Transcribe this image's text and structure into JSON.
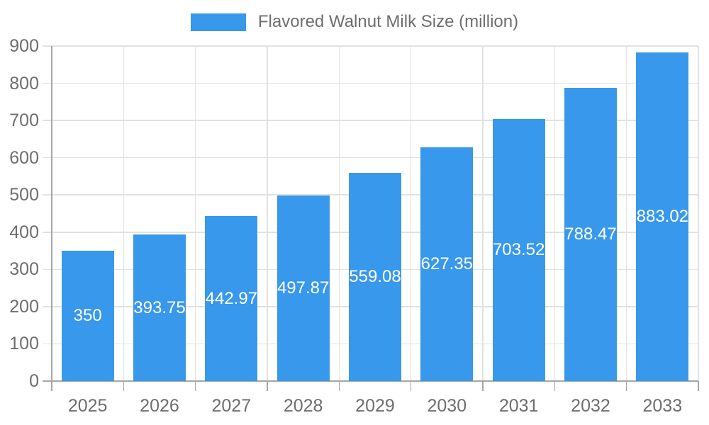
{
  "chart_data": {
    "type": "bar",
    "title": "Flavored Walnut Milk Size (million)",
    "categories": [
      "2025",
      "2026",
      "2027",
      "2028",
      "2029",
      "2030",
      "2031",
      "2032",
      "2033"
    ],
    "values": [
      350,
      393.75,
      442.97,
      497.87,
      559.08,
      627.35,
      703.52,
      788.47,
      883.02
    ],
    "value_labels": [
      "350",
      "393.75",
      "442.97",
      "497.87",
      "559.08",
      "627.35",
      "703.52",
      "788.47",
      "883.02"
    ],
    "xlabel": "",
    "ylabel": "",
    "ylim": [
      0,
      900
    ],
    "yticks": [
      0,
      100,
      200,
      300,
      400,
      500,
      600,
      700,
      800,
      900
    ],
    "grid": true,
    "legend_position": "top",
    "value_label_position": "inside-center",
    "colors": {
      "bar": "#3898EC",
      "axis": "#A6A6A6",
      "grid": "#E2E2E2",
      "tick_text": "#6E6E6E",
      "value_text": "#FFFFFF",
      "background": "#FFFFFF"
    }
  },
  "legend": {
    "label": "Flavored Walnut Milk Size (million)"
  }
}
